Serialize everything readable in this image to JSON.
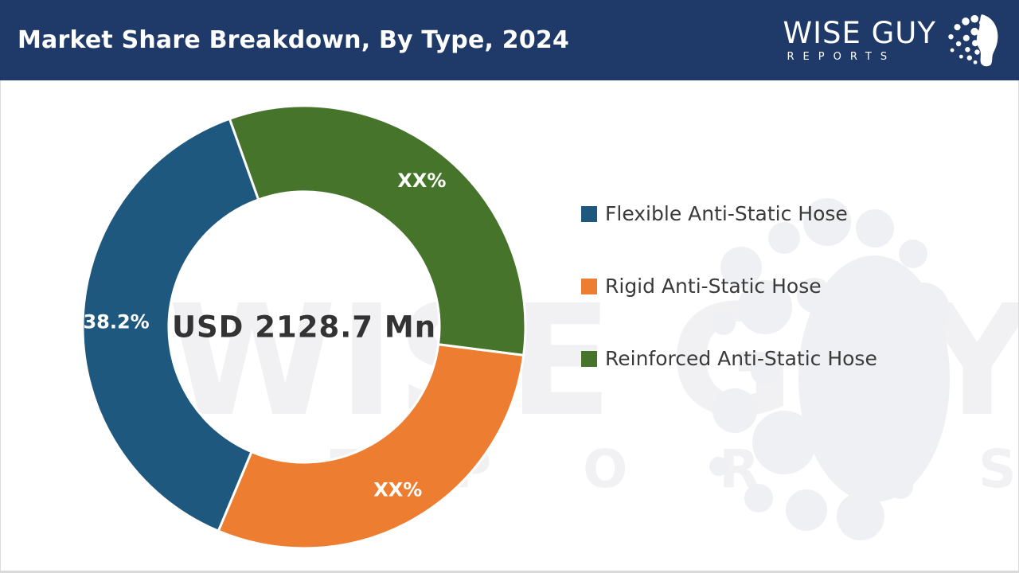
{
  "header": {
    "title": "Market Share Breakdown, By Type, 2024",
    "bg_color": "#1f3a68",
    "logo": {
      "line1": "WISE GUY",
      "line2": "REPORTS"
    }
  },
  "watermark": {
    "line1": "WISE GUY",
    "line2": "R E P O R T S"
  },
  "chart_data": {
    "type": "pie",
    "subtype": "donut",
    "title": "Market Share Breakdown, By Type, 2024",
    "center_label": "USD 2128.7 Mn",
    "start_angle_deg": 202.8,
    "clockwise": true,
    "values_are_percent": true,
    "slices": [
      {
        "name": "Flexible Anti-Static Hose",
        "value": 38.2,
        "label": "38.2%",
        "color": "#1f587e",
        "label_color": "#ffffff"
      },
      {
        "name": "Reinforced Anti-Static Hose",
        "value": 32.5,
        "label": "XX%",
        "color": "#45742a",
        "label_color": "#ffffff"
      },
      {
        "name": "Rigid Anti-Static Hose",
        "value": 29.3,
        "label": "XX%",
        "color": "#ed7d31",
        "label_color": "#ffffff"
      }
    ],
    "legend_position": "right",
    "legend": [
      {
        "label": "Flexible Anti-Static Hose",
        "color": "#1f587e"
      },
      {
        "label": "Rigid Anti-Static Hose",
        "color": "#ed7d31"
      },
      {
        "label": "Reinforced Anti-Static Hose",
        "color": "#45742a"
      }
    ],
    "center_text_color": "#333333"
  }
}
